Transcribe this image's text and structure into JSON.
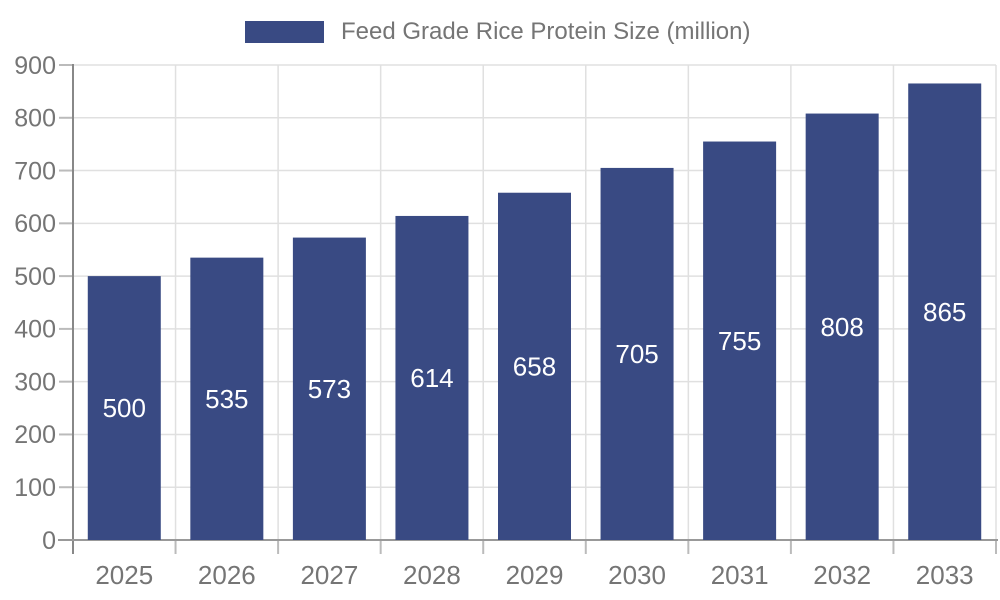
{
  "chart_data": {
    "type": "bar",
    "categories": [
      "2025",
      "2026",
      "2027",
      "2028",
      "2029",
      "2030",
      "2031",
      "2032",
      "2033"
    ],
    "series": [
      {
        "name": "Feed Grade Rice Protein Size (million)",
        "values": [
          500,
          535,
          573,
          614,
          658,
          705,
          755,
          808,
          865
        ]
      }
    ],
    "title": "",
    "xlabel": "",
    "ylabel": "",
    "ylim": [
      0,
      900
    ],
    "ytick_step": 100,
    "yticks": [
      0,
      100,
      200,
      300,
      400,
      500,
      600,
      700,
      800,
      900
    ],
    "grid": true,
    "value_labels_visible": true,
    "legend_position": "top-center",
    "colors": {
      "bar": "#394A83",
      "value_label": "#FFFFFF",
      "axis_label": "#757575",
      "gridline": "#E0E0E0",
      "y_axis_line": "#888888",
      "x_axis_line": "#999999",
      "tick": "#BBBBBB",
      "background": "#FFFFFF"
    }
  }
}
